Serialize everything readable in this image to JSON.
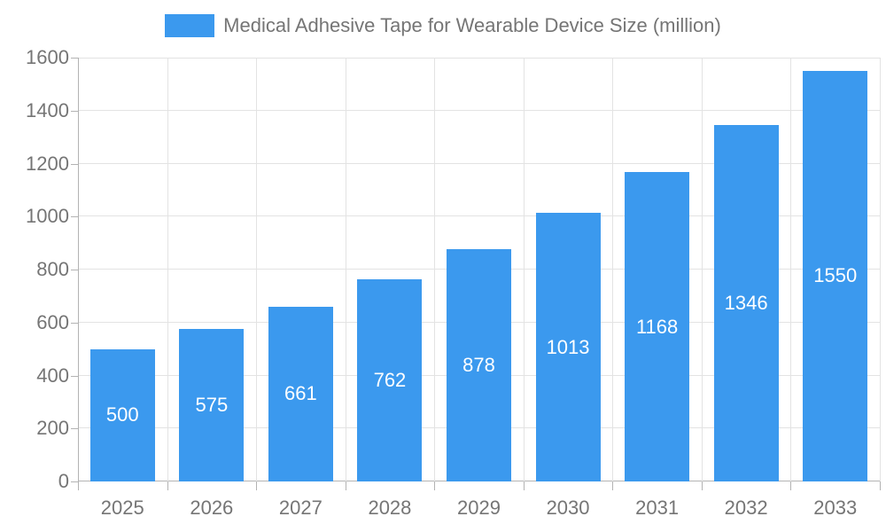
{
  "legend": {
    "label": "Medical Adhesive Tape for Wearable Device Size (million)"
  },
  "chart_data": {
    "type": "bar",
    "title": "Medical Adhesive Tape for Wearable Device Size (million)",
    "categories": [
      "2025",
      "2026",
      "2027",
      "2028",
      "2029",
      "2030",
      "2031",
      "2032",
      "2033"
    ],
    "values": [
      500,
      575,
      661,
      762,
      878,
      1013,
      1168,
      1346,
      1550
    ],
    "series": [
      {
        "name": "Medical Adhesive Tape for Wearable Device Size (million)",
        "values": [
          500,
          575,
          661,
          762,
          878,
          1013,
          1168,
          1346,
          1550
        ]
      }
    ],
    "xlabel": "",
    "ylabel": "",
    "ylim": [
      0,
      1600
    ],
    "yticks": [
      0,
      200,
      400,
      600,
      800,
      1000,
      1200,
      1400,
      1600
    ],
    "grid": true,
    "legend_position": "top-center",
    "value_labels": "inside-center",
    "colors": {
      "bar": "#3b99ee",
      "value_label": "#ffffff",
      "axis_label": "#757575",
      "grid_line": "#e3e3e3",
      "axis_line": "#b3b3b3",
      "background": "#ffffff"
    }
  }
}
